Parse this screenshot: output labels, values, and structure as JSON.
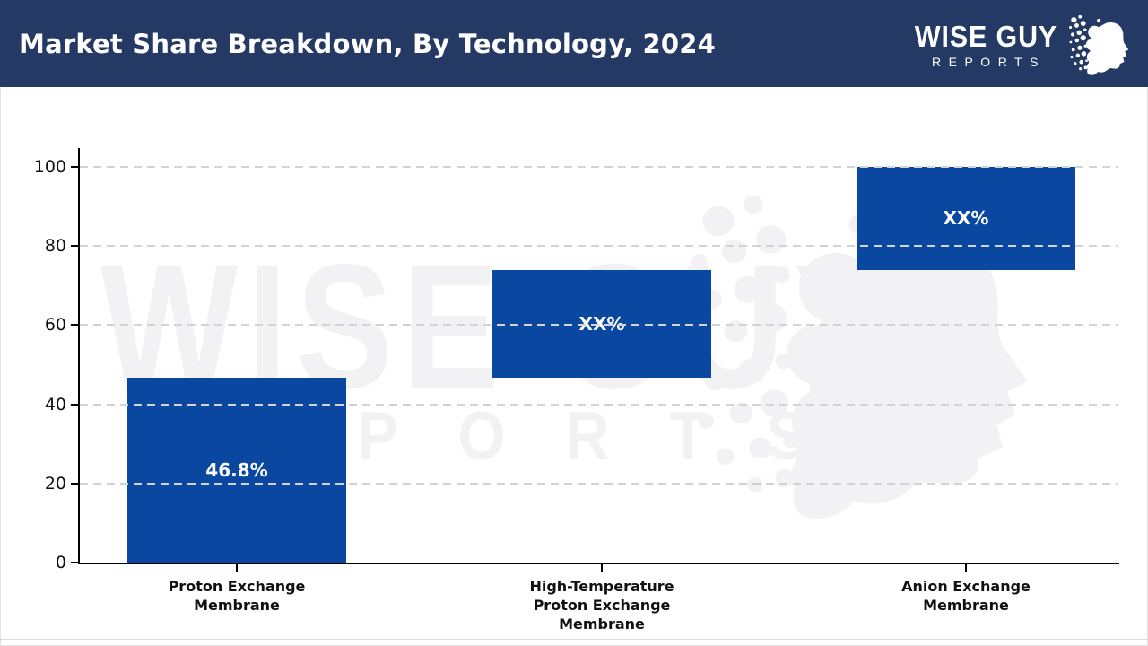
{
  "header": {
    "title": "Market Share Breakdown, By Technology, 2024",
    "logo": {
      "wordmark": "WISE GUY",
      "tagline": "REPORTS"
    }
  },
  "watermark": {
    "wordmark": "WISE GUY",
    "tagline": "REPORTS"
  },
  "chart_data": {
    "type": "bar",
    "subtype": "waterfall",
    "title": "Market Share Breakdown, By Technology, 2024",
    "categories": [
      "Proton Exchange Membrane",
      "High-Temperature Proton Exchange Membrane",
      "Anion Exchange Membrane"
    ],
    "category_label_lines": [
      [
        "Proton Exchange",
        "Membrane"
      ],
      [
        "High-Temperature",
        "Proton Exchange",
        "Membrane"
      ],
      [
        "Anion Exchange",
        "Membrane"
      ]
    ],
    "series": [
      {
        "name": "Market Share (%)",
        "segments": [
          {
            "category": "Proton Exchange Membrane",
            "start": 0,
            "end": 46.8,
            "label": "46.8%"
          },
          {
            "category": "High-Temperature Proton Exchange Membrane",
            "start": 46.8,
            "end": 74,
            "label": "XX%"
          },
          {
            "category": "Anion Exchange Membrane",
            "start": 74,
            "end": 100,
            "label": "XX%"
          }
        ]
      }
    ],
    "ylim": [
      0,
      100
    ],
    "yticks": [
      0,
      20,
      40,
      60,
      80,
      100
    ],
    "xlabel": "",
    "ylabel": "",
    "legend": "none",
    "grid": {
      "horizontal": true,
      "style": "dashed",
      "drawn_over_bars": true
    },
    "colors": {
      "bar": "#0a47a1",
      "bar_label": "#ffffff",
      "axis": "#000000",
      "gridline": "#d3d3d3",
      "header_bg": "#243a64",
      "watermark": "#f2f2f4"
    }
  }
}
